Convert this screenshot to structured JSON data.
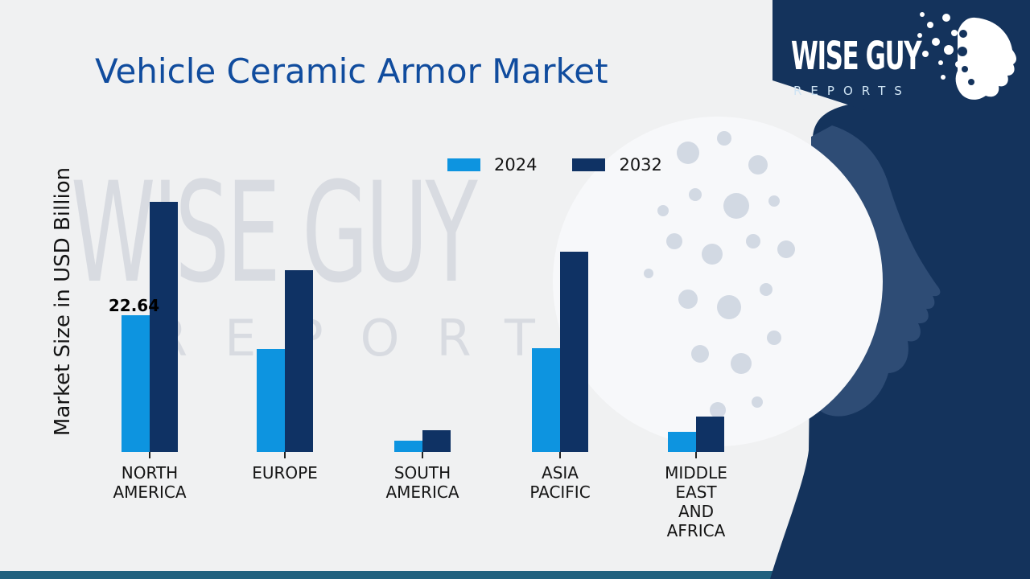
{
  "title": "Vehicle Ceramic Armor Market",
  "watermark": {
    "brand": "WISE GUY",
    "reports": "REPORTS"
  },
  "logo": {
    "brand": "WISE GUY",
    "reports": "REPORTS"
  },
  "colors": {
    "title_blue": "#104c9e",
    "bar_2024": "#0d94e0",
    "bar_2032": "#0f3264",
    "logo_navy": "#14335c",
    "face_navy": "#2e4c75",
    "bottom_bar": "#20617f",
    "watermark_gray": "#d8dbe1",
    "background": "#f0f1f2",
    "label_dark": "#141414"
  },
  "chart_data": {
    "type": "bar",
    "title": "Vehicle Ceramic Armor Market",
    "xlabel": "",
    "ylabel": "Market Size in USD Billion",
    "unit": "USD Billion",
    "categories": [
      "NORTH AMERICA",
      "EUROPE",
      "SOUTH AMERICA",
      "ASIA PACIFIC",
      "MIDDLE EAST AND AFRICA"
    ],
    "category_display": [
      "NORTH\nAMERICA",
      "EUROPE",
      "SOUTH\nAMERICA",
      "ASIA\nPACIFIC",
      "MIDDLE\nEAST\nAND\nAFRICA"
    ],
    "series": [
      {
        "name": "2024",
        "color": "#0d94e0",
        "values": [
          22.64,
          17.0,
          1.9,
          17.2,
          3.3
        ]
      },
      {
        "name": "2032",
        "color": "#0f3264",
        "values": [
          41.4,
          30.1,
          3.6,
          33.2,
          5.9
        ]
      }
    ],
    "annotations": [
      {
        "category": "NORTH AMERICA",
        "series": "2024",
        "text": "22.64"
      }
    ],
    "ylim": [
      0,
      45
    ],
    "grid": false,
    "legend_position": "top-center"
  }
}
